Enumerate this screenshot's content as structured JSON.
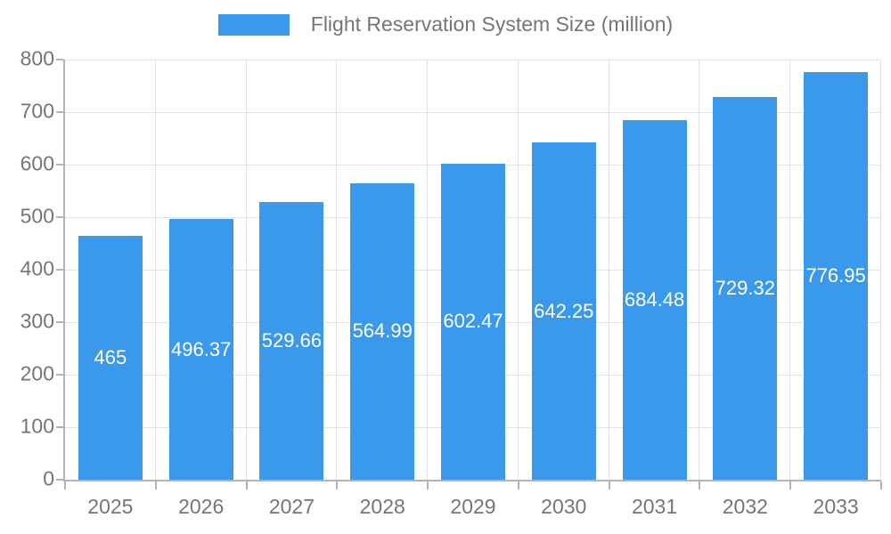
{
  "legend": {
    "label": "Flight Reservation System Size (million)"
  },
  "colors": {
    "bar": "#3b99ec",
    "grid": "#e2e2e2",
    "axis": "#b3b3b3",
    "label_text": "#757575",
    "bar_label_text": "#ffffff"
  },
  "chart_data": {
    "type": "bar",
    "title": "Flight Reservation System Size (million)",
    "series_name": "Flight Reservation System Size (million)",
    "categories": [
      "2025",
      "2026",
      "2027",
      "2028",
      "2029",
      "2030",
      "2031",
      "2032",
      "2033"
    ],
    "values": [
      465,
      496.37,
      529.66,
      564.99,
      602.47,
      642.25,
      684.48,
      729.32,
      776.95
    ],
    "value_labels": [
      "465",
      "496.37",
      "529.66",
      "564.99",
      "602.47",
      "642.25",
      "684.48",
      "729.32",
      "776.95"
    ],
    "xlabel": "",
    "ylabel": "",
    "ylim": [
      0,
      800
    ],
    "ytick_step": 100,
    "ytick_labels": [
      "0",
      "100",
      "200",
      "300",
      "400",
      "500",
      "600",
      "700",
      "800"
    ],
    "grid": true,
    "legend_position": "top"
  }
}
